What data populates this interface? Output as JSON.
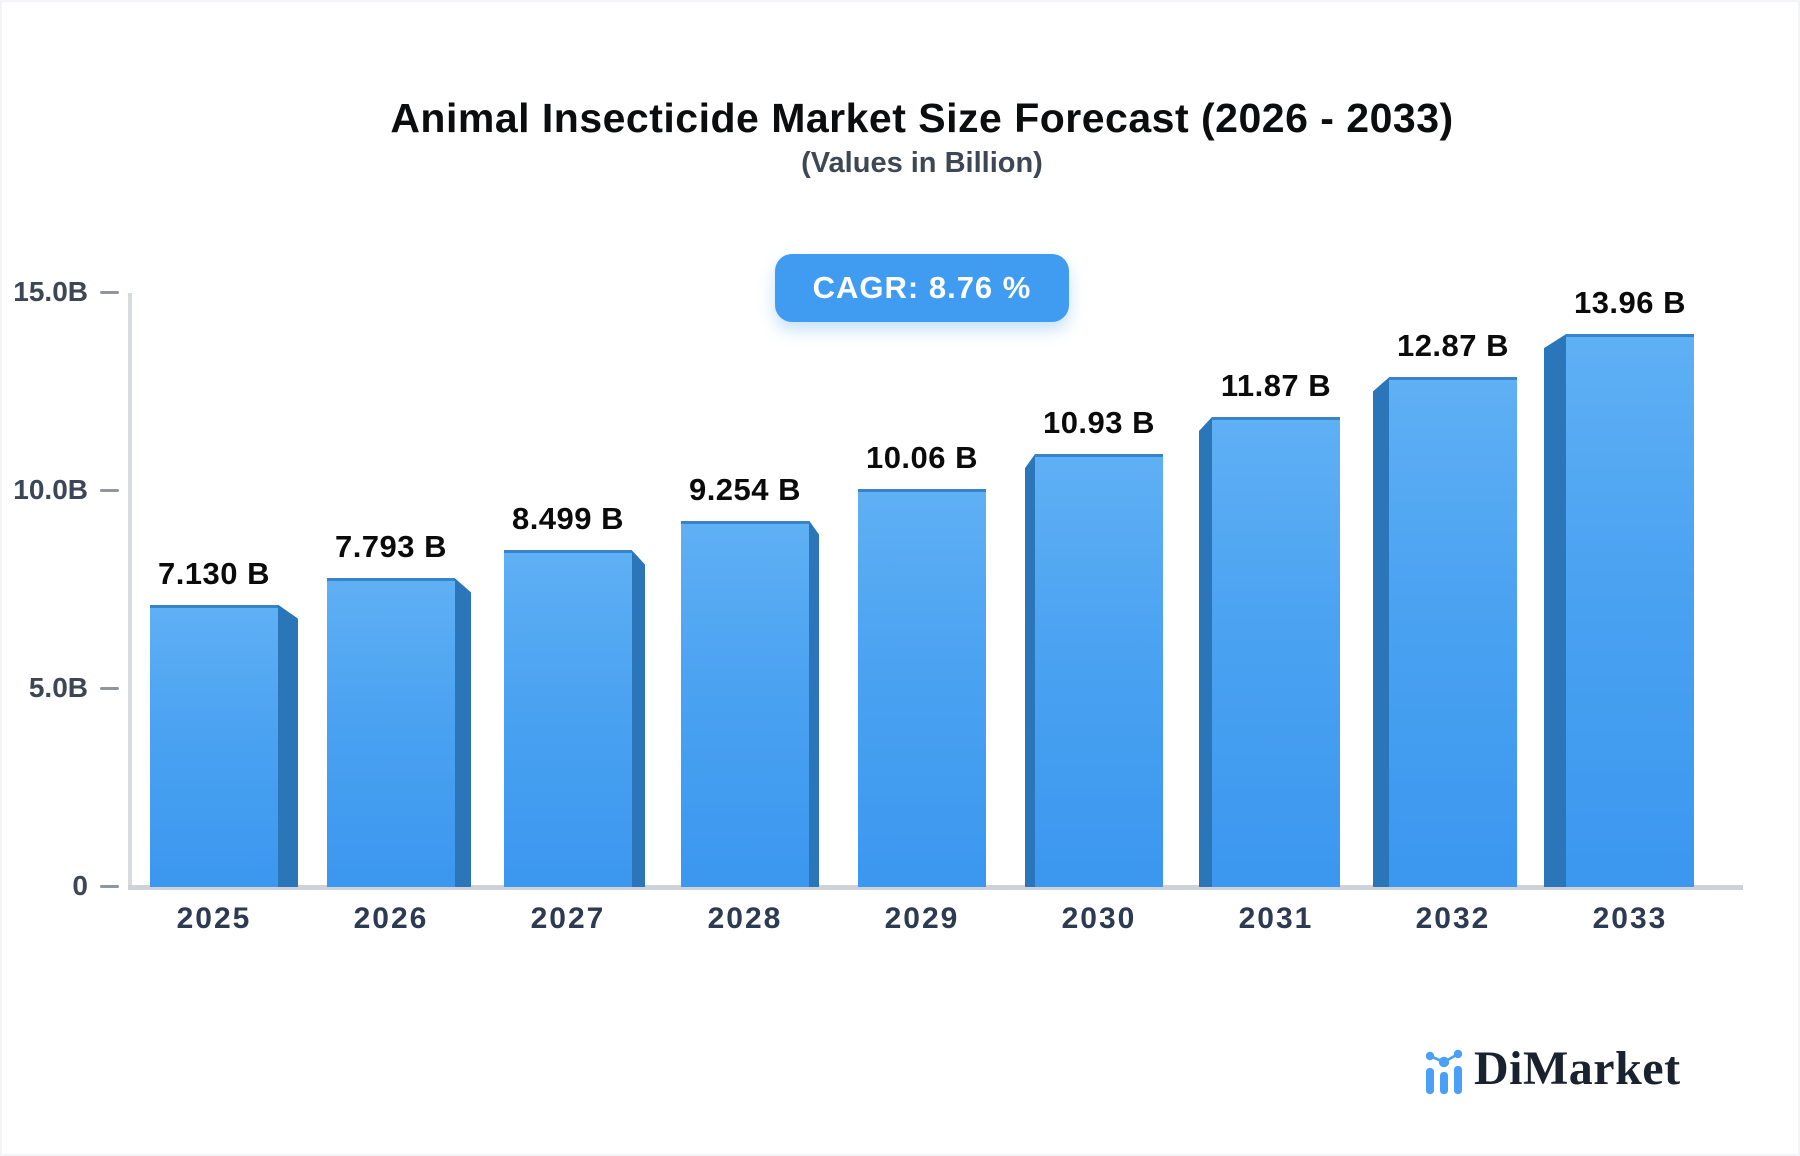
{
  "header": {
    "title": "Animal Insecticide Market Size Forecast (2026 - 2033)",
    "subtitle": "(Values in Billion)",
    "cagr_label": "CAGR: 8.76 %"
  },
  "chart_data": {
    "type": "bar",
    "title": "Animal Insecticide Market Size Forecast (2026 - 2033)",
    "subtitle": "(Values in Billion)",
    "unit": "Billion",
    "cagr_percent": 8.76,
    "categories": [
      "2025",
      "2026",
      "2027",
      "2028",
      "2029",
      "2030",
      "2031",
      "2032",
      "2033"
    ],
    "values": [
      7.13,
      7.793,
      8.499,
      9.254,
      10.06,
      10.93,
      11.87,
      12.87,
      13.96
    ],
    "bar_labels": [
      "7.130 B",
      "7.793 B",
      "8.499 B",
      "9.254 B",
      "10.06 B",
      "10.93 B",
      "11.87 B",
      "12.87 B",
      "13.96 B"
    ],
    "xlabel": "",
    "ylabel": "",
    "ylim": [
      0,
      15
    ],
    "yticks": [
      {
        "value": 15,
        "label": "15.0B"
      },
      {
        "value": 10,
        "label": "10.0B"
      },
      {
        "value": 5,
        "label": "5.0B"
      },
      {
        "value": 0,
        "label": "0"
      }
    ],
    "grid": false,
    "legend": false,
    "colors": {
      "bar_top": "#5fb0f4",
      "bar_bottom": "#3b97ef",
      "bar_side": "#2b76b8",
      "badge": "#3f9cf1",
      "axis": "#d7dade"
    }
  },
  "footer": {
    "brand": "DiMarket"
  }
}
